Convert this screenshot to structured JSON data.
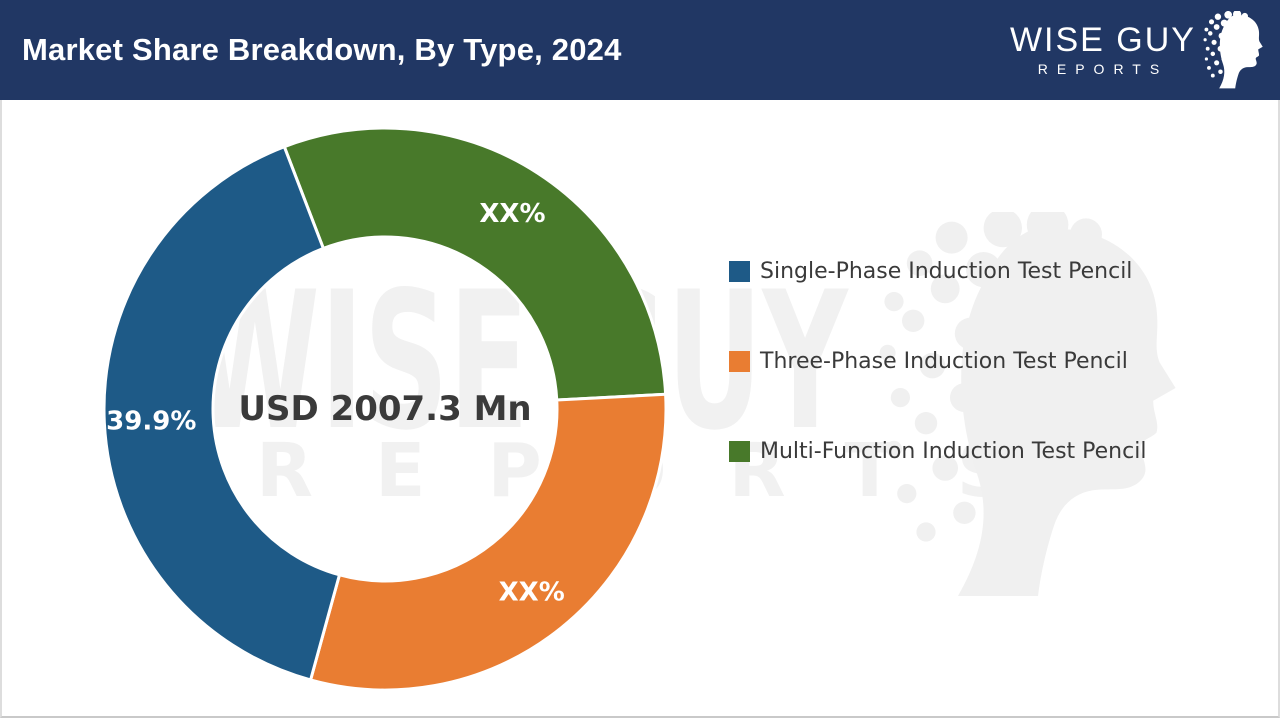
{
  "colors": {
    "header_bg": "#213764",
    "single_phase": "#1e5a87",
    "three_phase": "#e97d32",
    "multi_function": "#48792a",
    "text_dark": "#3a3a3a",
    "watermark": "#f1f1f1"
  },
  "header": {
    "title": "Market Share Breakdown, By Type, 2024",
    "logo": {
      "line1": "WISE GUY",
      "line2": "REPORTS"
    }
  },
  "watermark": {
    "text1": "WISE GUY",
    "text2": "REPORTS"
  },
  "chart_data": {
    "type": "pie",
    "donut": true,
    "title": "Market Share Breakdown, By Type, 2024",
    "center_label": "USD 2007.3 Mn",
    "legend_position": "right",
    "start_angle_deg": -21,
    "draw_sequence": [
      2,
      1,
      0
    ],
    "slices": [
      {
        "name": "Single-Phase Induction Test Pencil",
        "value": 39.9,
        "display_label": "39.9%",
        "color": "#1e5a87"
      },
      {
        "name": "Three-Phase Induction Test Pencil",
        "value": 30.1,
        "display_label": "XX%",
        "color": "#e97d32"
      },
      {
        "name": "Multi-Function Induction Test Pencil",
        "value": 30.0,
        "display_label": "XX%",
        "color": "#48792a"
      }
    ]
  }
}
